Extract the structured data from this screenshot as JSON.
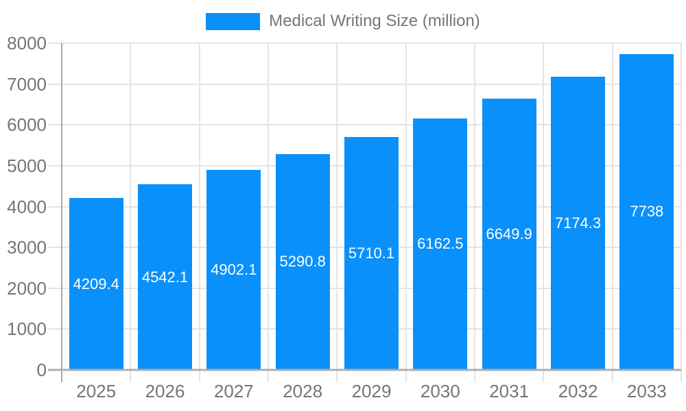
{
  "legend": {
    "label": "Medical Writing Size (million)"
  },
  "chart_data": {
    "type": "bar",
    "title": "Medical Writing Size (million)",
    "categories": [
      "2025",
      "2026",
      "2027",
      "2028",
      "2029",
      "2030",
      "2031",
      "2032",
      "2033"
    ],
    "values": [
      4209.4,
      4542.1,
      4902.1,
      5290.8,
      5710.1,
      6162.5,
      6649.9,
      7174.3,
      7738
    ],
    "value_labels": [
      "4209.4",
      "4542.1",
      "4902.1",
      "5290.8",
      "5710.1",
      "6162.5",
      "6649.9",
      "7174.3",
      "7738"
    ],
    "xlabel": "",
    "ylabel": "",
    "ylim": [
      0,
      8000
    ],
    "yticks": [
      0,
      1000,
      2000,
      3000,
      4000,
      5000,
      6000,
      7000,
      8000
    ],
    "grid": true,
    "legend_position": "top-center",
    "bar_color": "#0a90fa",
    "value_label_color": "#ffffff",
    "axis_text_color": "#757575",
    "gridline_color": "#e4e4e4",
    "axis_line_color": "#a8a8a8"
  }
}
